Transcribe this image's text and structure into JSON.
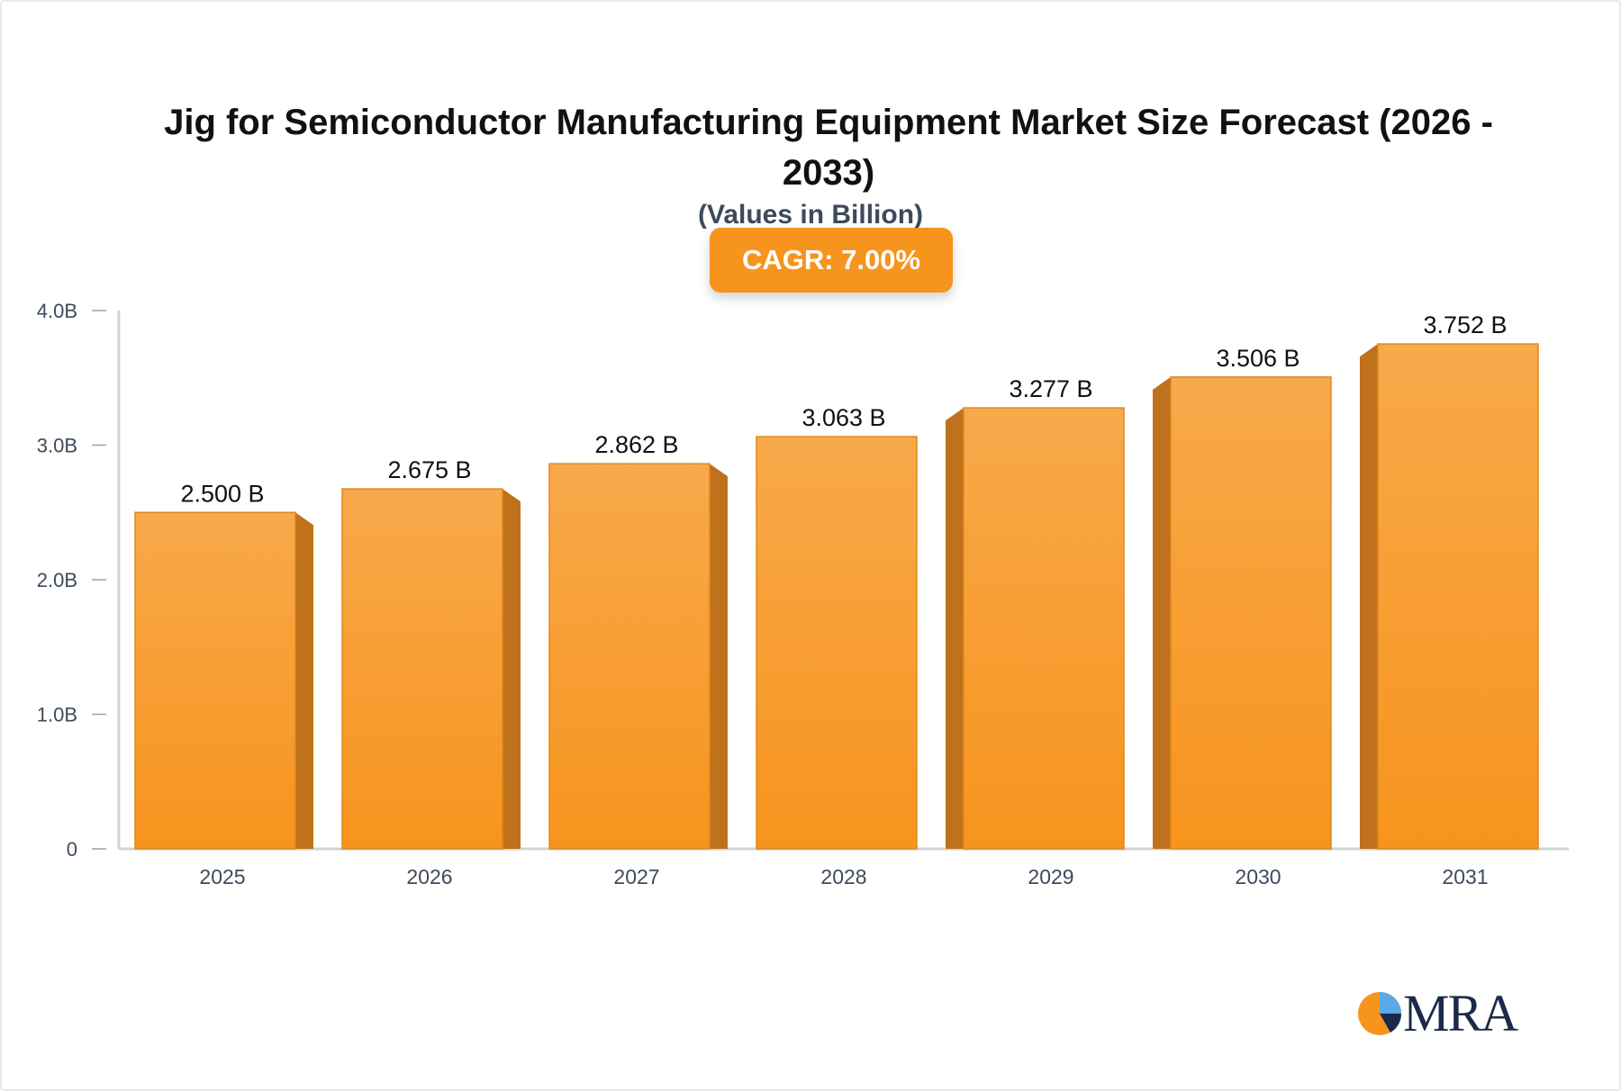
{
  "title": "Jig for Semiconductor Manufacturing Equipment Market Size Forecast (2026 - 2033)",
  "subtitle": "(Values in Billion)",
  "cagr_label": "CAGR: 7.00%",
  "logo_text": "MRA",
  "colors": {
    "bar_top": "#f8a94b",
    "bar_bottom": "#f7941d",
    "bar_side": "#c0711b",
    "badge": "#f7941d",
    "axis": "#cfd3da"
  },
  "chart_data": {
    "type": "bar",
    "categories": [
      "2025",
      "2026",
      "2027",
      "2028",
      "2029",
      "2030",
      "2031"
    ],
    "values": [
      2.5,
      2.675,
      2.862,
      3.063,
      3.277,
      3.506,
      3.752
    ],
    "value_labels": [
      "2.500 B",
      "2.675 B",
      "2.862 B",
      "3.063 B",
      "3.277 B",
      "3.506 B",
      "3.752 B"
    ],
    "yticks": [
      0,
      1,
      2,
      3,
      4
    ],
    "ytick_labels": [
      "0",
      "1.0B",
      "2.0B",
      "3.0B",
      "4.0B"
    ],
    "ylim": [
      0,
      4
    ],
    "xlabel": "",
    "ylabel": ""
  }
}
